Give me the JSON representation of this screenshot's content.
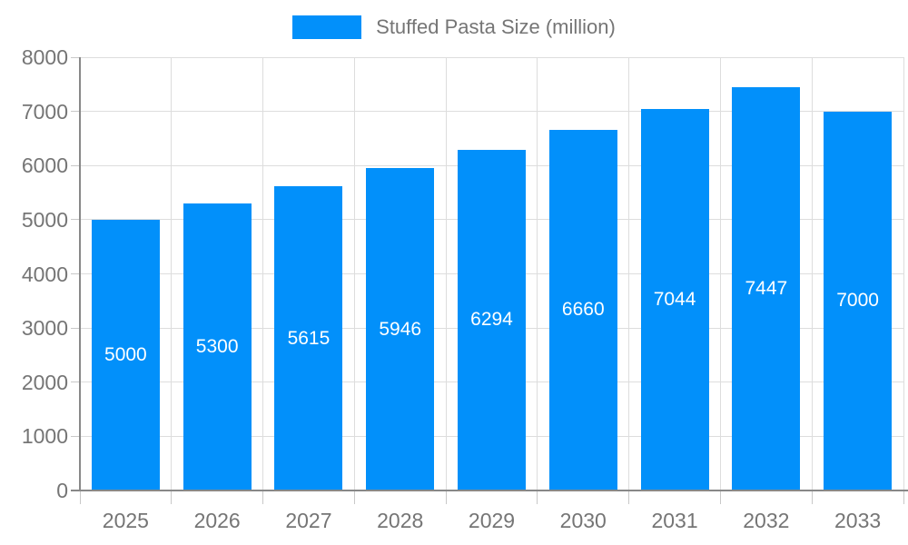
{
  "chart_data": {
    "type": "bar",
    "title": "",
    "legend": {
      "label": "Stuffed Pasta Size (million)",
      "position": "top"
    },
    "categories": [
      "2025",
      "2026",
      "2027",
      "2028",
      "2029",
      "2030",
      "2031",
      "2032",
      "2033"
    ],
    "series": [
      {
        "name": "Stuffed Pasta Size (million)",
        "values": [
          5000,
          5300,
          5615,
          5946,
          6294,
          6660,
          7044,
          7447,
          7000
        ]
      }
    ],
    "value_labels_shown": true,
    "xlabel": "",
    "ylabel": "",
    "ylim": [
      0,
      8000
    ],
    "ytick_step": 1000,
    "grid": true,
    "colors": {
      "bar": "#0290FA",
      "value_label": "#ffffff",
      "axis_line": "#888888",
      "grid_line": "#dddddd",
      "tick_mark": "#c8c8c8",
      "tick_label": "#757575",
      "background": "#ffffff"
    }
  }
}
